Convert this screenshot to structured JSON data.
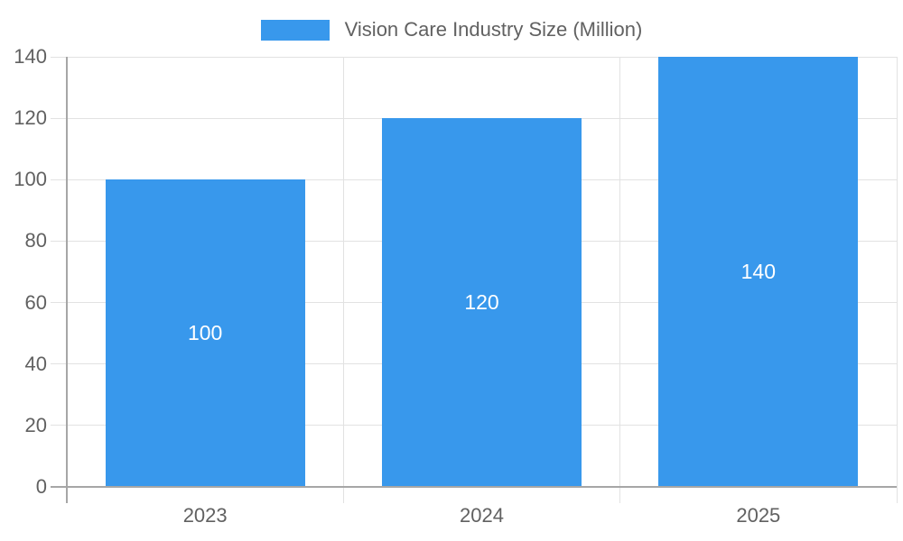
{
  "chart_data": {
    "type": "bar",
    "title": "Vision Care Industry Size (Million)",
    "categories": [
      "2023",
      "2024",
      "2025"
    ],
    "series": [
      {
        "name": "Vision Care Industry Size (Million)",
        "values": [
          100,
          120,
          140
        ]
      }
    ],
    "data_labels": [
      "100",
      "120",
      "140"
    ],
    "xlabel": "",
    "ylabel": "",
    "ylim": [
      0,
      140
    ],
    "ytick_step": 20,
    "yticks": [
      0,
      20,
      40,
      60,
      80,
      100,
      120,
      140
    ],
    "grid": true,
    "legend_position": "top-center",
    "colors": {
      "bar": "#3898ec",
      "axis_line": "#a6a6a6",
      "gridline": "#e2e2e2",
      "tick_label": "#616161",
      "data_label": "#ffffff",
      "background": "#ffffff"
    }
  }
}
